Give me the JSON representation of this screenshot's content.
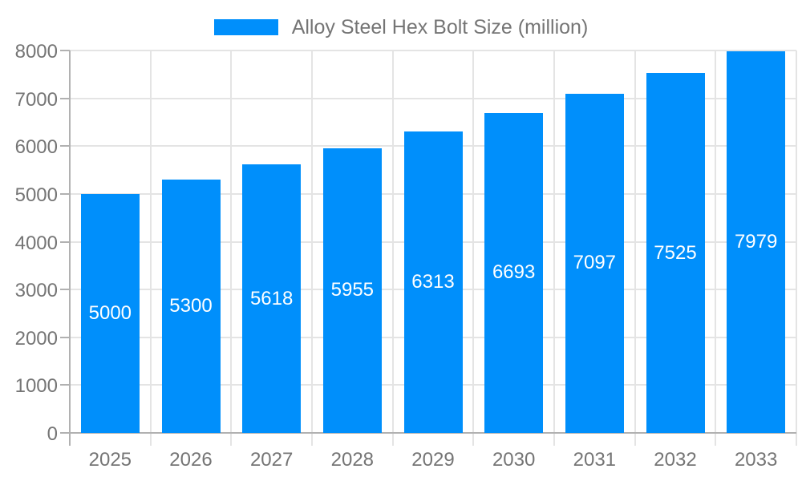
{
  "legend": {
    "label": "Alloy Steel Hex Bolt Size (million)",
    "swatch_color": "#008FFB"
  },
  "chart_data": {
    "type": "bar",
    "title": "",
    "categories": [
      "2025",
      "2026",
      "2027",
      "2028",
      "2029",
      "2030",
      "2031",
      "2032",
      "2033"
    ],
    "series": [
      {
        "name": "Alloy Steel Hex Bolt Size (million)",
        "color": "#008FFB",
        "values": [
          5000,
          5300,
          5618,
          5955,
          6313,
          6693,
          7097,
          7525,
          7979
        ]
      }
    ],
    "xlabel": "",
    "ylabel": "",
    "ylim": [
      0,
      8000
    ],
    "ytick_interval": 1000,
    "yticks": [
      0,
      1000,
      2000,
      3000,
      4000,
      5000,
      6000,
      7000,
      8000
    ],
    "grid": true,
    "legend_position": "top-center",
    "data_labels": {
      "enabled": true,
      "position": "center-of-bar",
      "color": "#ffffff"
    }
  },
  "colors": {
    "bar": "#008FFB",
    "axis_text": "#757575",
    "grid_line": "#e4e4e4",
    "axis_line": "#b1b1b1",
    "data_label_text": "#ffffff",
    "background": "#ffffff"
  }
}
